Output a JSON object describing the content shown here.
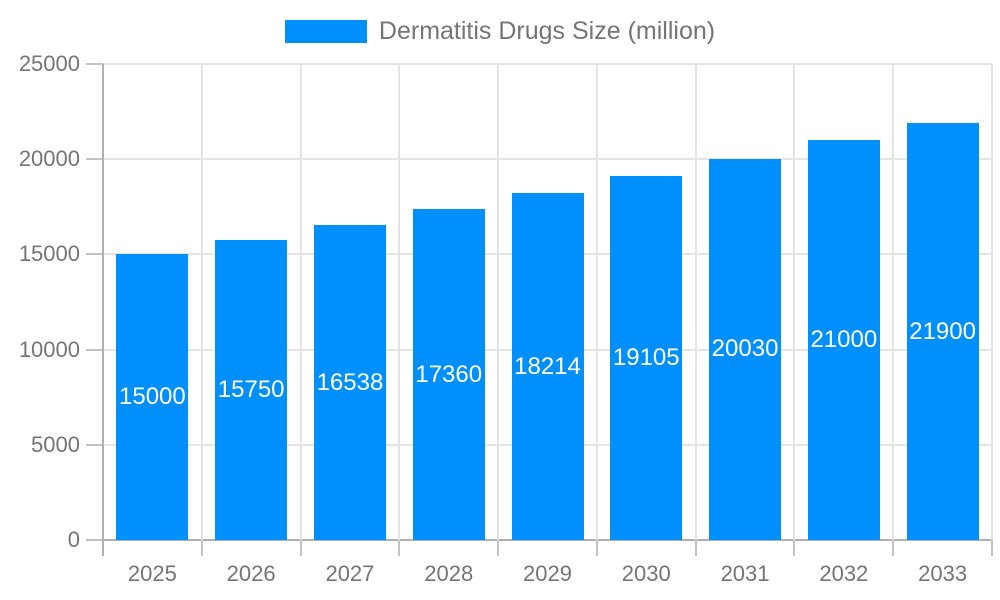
{
  "legend": {
    "series_label": "Dermatitis Drugs Size (million)"
  },
  "chart_data": {
    "type": "bar",
    "title": "Dermatitis Drugs Size (million)",
    "categories": [
      "2025",
      "2026",
      "2027",
      "2028",
      "2029",
      "2030",
      "2031",
      "2032",
      "2033"
    ],
    "values": [
      15000,
      15750,
      16538,
      17360,
      18214,
      19105,
      20030,
      21000,
      21900
    ],
    "series": [
      {
        "name": "Dermatitis Drugs Size (million)",
        "values": [
          15000,
          15750,
          16538,
          17360,
          18214,
          19105,
          20030,
          21000,
          21900
        ]
      }
    ],
    "xlabel": "",
    "ylabel": "",
    "ylim": [
      0,
      25000
    ],
    "yticks": [
      0,
      5000,
      10000,
      15000,
      20000,
      25000
    ],
    "grid": true,
    "legend_position": "top-center",
    "bar_color": "#008FFB",
    "bar_label_color": "#ffffff",
    "axis_text_color": "#757575",
    "gridline_color": "#e4e4e4",
    "axis_line_color": "#b0b0b0"
  }
}
